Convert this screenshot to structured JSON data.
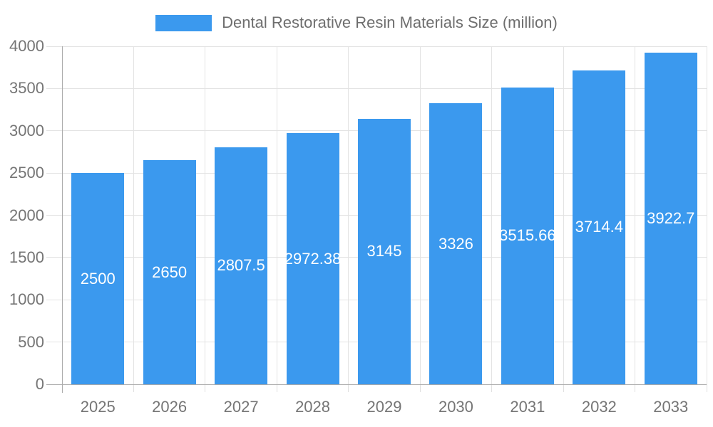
{
  "chart_data": {
    "type": "bar",
    "title": "Dental Restorative Resin Materials Size (million)",
    "legend": {
      "label": "Dental Restorative Resin Materials Size (million)",
      "position": "top-center"
    },
    "categories": [
      "2025",
      "2026",
      "2027",
      "2028",
      "2029",
      "2030",
      "2031",
      "2032",
      "2033"
    ],
    "series": [
      {
        "name": "Dental Restorative Resin Materials Size (million)",
        "values": [
          2500,
          2650,
          2807.5,
          2972.38,
          3145,
          3326,
          3515.66,
          3714.4,
          3922.7
        ],
        "value_labels": [
          "2500",
          "2650",
          "2807.5",
          "2972.38",
          "3145",
          "3326",
          "3515.66",
          "3714.4",
          "3922.7"
        ],
        "color": "#3B99EE"
      }
    ],
    "xlabel": "",
    "ylabel": "",
    "ylim": [
      0,
      4000
    ],
    "ytick_step": 500,
    "yticks": [
      "0",
      "500",
      "1000",
      "1500",
      "2000",
      "2500",
      "3000",
      "3500",
      "4000"
    ],
    "grid": "both",
    "value_label_position": "inside-center",
    "colors": {
      "bar": "#3B99EE",
      "axis_line": "#ABABAB",
      "gridline": "#E3E3E3",
      "outer_tick": "#E0E0E0",
      "tick_label": "#757575",
      "legend_label": "#6E6E6E",
      "value_label": "#FFFFFF",
      "background": "#FFFFFF"
    }
  }
}
